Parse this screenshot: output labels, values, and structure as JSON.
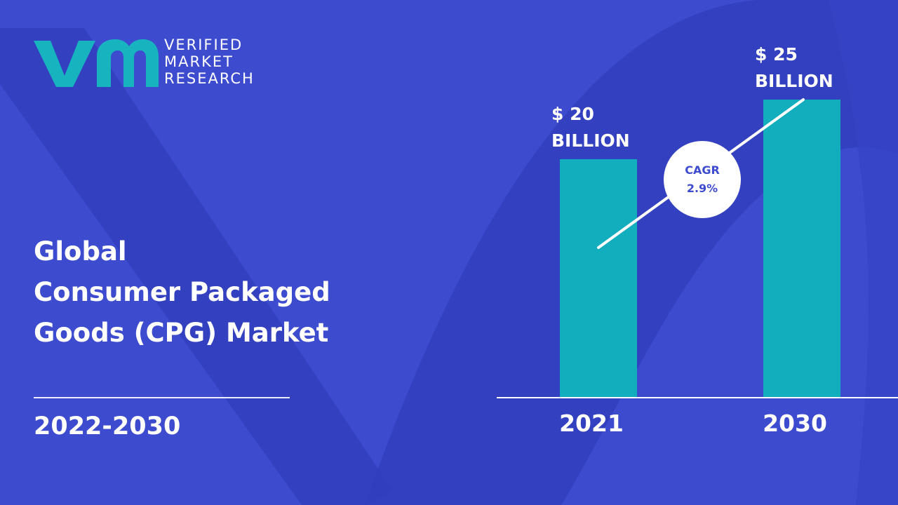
{
  "brand": {
    "line1": "VERIFIED",
    "line2": "MARKET",
    "line3": "RESEARCH",
    "mark_color": "#17b3bf"
  },
  "title": {
    "line1": "Global",
    "line2": "Consumer Packaged",
    "line3": "Goods (CPG) Market"
  },
  "period": "2022-2030",
  "colors": {
    "background": "#3d4bcf",
    "shape_dark": "#2e3cb8",
    "bar": "#12aebd",
    "text": "#ffffff"
  },
  "chart_data": {
    "type": "bar",
    "categories": [
      "2021",
      "2030"
    ],
    "values": [
      20,
      25
    ],
    "value_labels": [
      [
        "$ 20",
        "BILLION"
      ],
      [
        "$ 25",
        "BILLION"
      ]
    ],
    "unit": "USD billion",
    "title": "",
    "xlabel": "",
    "ylabel": "",
    "ylim": [
      0,
      25
    ],
    "grid": false,
    "legend": "none",
    "annotation": {
      "line1": "CAGR",
      "line2": "2.9%"
    }
  }
}
